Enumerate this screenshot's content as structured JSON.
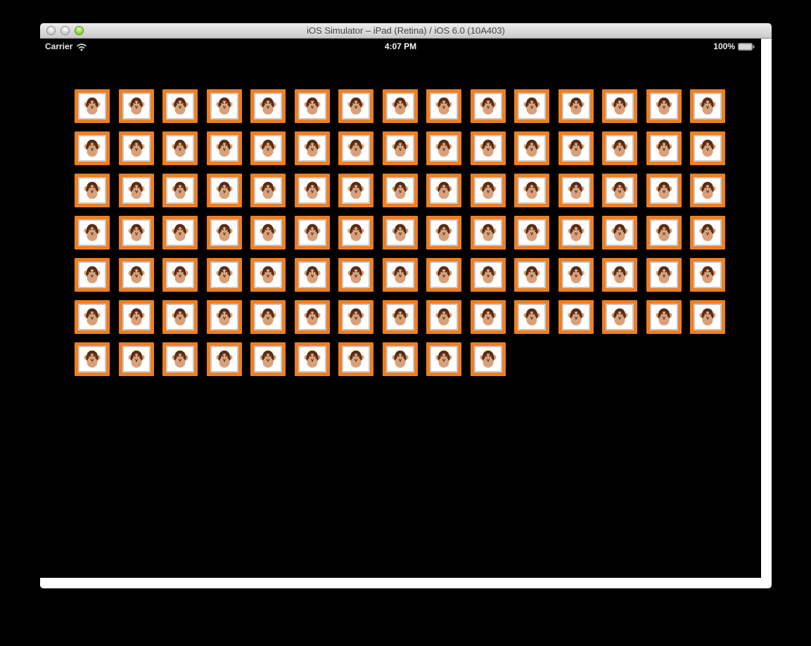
{
  "window": {
    "title": "iOS Simulator – iPad (Retina) / iOS 6.0 (10A403)",
    "traffic_lights": [
      {
        "name": "close",
        "state": "inactive-gray"
      },
      {
        "name": "minimize",
        "state": "inactive-gray"
      },
      {
        "name": "zoom",
        "state": "green"
      }
    ]
  },
  "status_bar": {
    "carrier": "Carrier",
    "wifi_icon": "wifi-icon",
    "time": "4:07 PM",
    "battery_percent": "100%",
    "battery_icon": "battery-full-icon"
  },
  "grid": {
    "description": "collection view of identical monkey photo cells",
    "total_cells": 100,
    "rows": [
      15,
      15,
      15,
      15,
      15,
      15,
      10
    ],
    "cell_icon": "monkey-icon"
  },
  "colors": {
    "screen_background": "#000000",
    "root_view_background": "#FFFFFF",
    "cell_border_orange": "#EE7F22",
    "cell_inner_border_gray": "#C7C7C7",
    "cell_background": "#FFFFFF",
    "monkey_hair_brown": "#5B2C16",
    "monkey_face_tan": "#D7A17C",
    "monkey_ear_tan": "#DE9E6C",
    "titlebar_text": "#3B3B3B",
    "statusbar_text": "#F5F5F5"
  }
}
